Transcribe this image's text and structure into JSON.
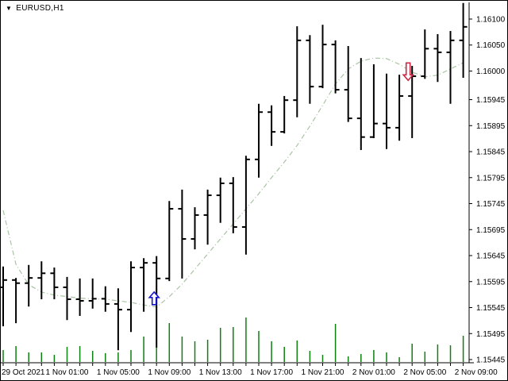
{
  "window": {
    "symbol_label": "EURUSD,H1"
  },
  "colors": {
    "background": "#ffffff",
    "bar": "#000000",
    "axis": "#000000",
    "ma_line": "#a9c4a4",
    "volume": "#0e800e",
    "buy_arrow": "#1515cc",
    "sell_arrow": "#cc2643",
    "label_text": "#000000"
  },
  "price_axis": {
    "labels": [
      "1.16100",
      "1.16050",
      "1.16000",
      "1.15945",
      "1.15895",
      "1.15845",
      "1.15795",
      "1.15745",
      "1.15695",
      "1.15645",
      "1.15595",
      "1.15545",
      "1.15495",
      "1.15445"
    ]
  },
  "time_axis": {
    "labels": [
      {
        "text": "29 Oct 2021",
        "bar": 1
      },
      {
        "text": "1 Nov 01:00",
        "bar": 5
      },
      {
        "text": "1 Nov 05:00",
        "bar": 9
      },
      {
        "text": "1 Nov 09:00",
        "bar": 13
      },
      {
        "text": "1 Nov 13:00",
        "bar": 17
      },
      {
        "text": "1 Nov 17:00",
        "bar": 21
      },
      {
        "text": "1 Nov 21:00",
        "bar": 25
      },
      {
        "text": "2 Nov 01:00",
        "bar": 29
      },
      {
        "text": "2 Nov 05:00",
        "bar": 33
      },
      {
        "text": "2 Nov 09:00",
        "bar": 37
      }
    ]
  },
  "chart_data": {
    "type": "bar",
    "subtype": "ohlc-bars-with-ma-and-volume",
    "symbol": "EURUSD",
    "timeframe": "H1",
    "ylim": [
      1.15445,
      1.16131
    ],
    "x": [
      "29 Oct 20:00",
      "29 Oct 21:00",
      "29 Oct 22:00",
      "29 Oct 23:00",
      "1 Nov 00:00",
      "1 Nov 01:00",
      "1 Nov 02:00",
      "1 Nov 03:00",
      "1 Nov 04:00",
      "1 Nov 05:00",
      "1 Nov 06:00",
      "1 Nov 07:00",
      "1 Nov 08:00",
      "1 Nov 09:00",
      "1 Nov 10:00",
      "1 Nov 11:00",
      "1 Nov 12:00",
      "1 Nov 13:00",
      "1 Nov 14:00",
      "1 Nov 15:00",
      "1 Nov 16:00",
      "1 Nov 17:00",
      "1 Nov 18:00",
      "1 Nov 19:00",
      "1 Nov 20:00",
      "1 Nov 21:00",
      "1 Nov 22:00",
      "1 Nov 23:00",
      "2 Nov 00:00",
      "2 Nov 01:00",
      "2 Nov 02:00",
      "2 Nov 03:00",
      "2 Nov 04:00",
      "2 Nov 05:00",
      "2 Nov 06:00",
      "2 Nov 07:00",
      "2 Nov 08:00"
    ],
    "series": [
      {
        "name": "EURUSD price",
        "type": "ohlc",
        "open": [
          1.15584,
          1.15598,
          1.15592,
          1.15602,
          1.15611,
          1.15584,
          1.15561,
          1.15558,
          1.15562,
          1.15552,
          1.15541,
          1.15622,
          1.15631,
          1.15601,
          1.15735,
          1.15677,
          1.15723,
          1.15761,
          1.15784,
          1.157,
          1.1583,
          1.15921,
          1.15883,
          1.15944,
          1.16059,
          1.1597,
          1.16051,
          1.15964,
          1.15909,
          1.15873,
          1.15899,
          1.15891,
          1.15952,
          1.1599,
          1.16043,
          1.16036,
          1.16059
        ],
        "high": [
          1.15624,
          1.15602,
          1.15627,
          1.15634,
          1.15622,
          1.15604,
          1.15601,
          1.15601,
          1.15586,
          1.15582,
          1.15634,
          1.1564,
          1.15644,
          1.1575,
          1.15772,
          1.15738,
          1.15772,
          1.15795,
          1.15796,
          1.15837,
          1.15937,
          1.15934,
          1.15952,
          1.16086,
          1.16069,
          1.16089,
          1.16059,
          1.16048,
          1.16025,
          1.16013,
          1.15995,
          1.15993,
          1.1601,
          1.1608,
          1.16071,
          1.16077,
          1.16131
        ],
        "low": [
          1.15509,
          1.15515,
          1.15547,
          1.15561,
          1.15561,
          1.15521,
          1.15529,
          1.15543,
          1.15537,
          1.15463,
          1.15498,
          1.15537,
          1.15468,
          1.15596,
          1.15601,
          1.15657,
          1.15666,
          1.15708,
          1.15688,
          1.15647,
          1.15795,
          1.15856,
          1.1588,
          1.15911,
          1.15937,
          1.15967,
          1.15957,
          1.15902,
          1.15848,
          1.15871,
          1.1585,
          1.15866,
          1.15871,
          1.15985,
          1.15979,
          1.15937,
          1.15987
        ],
        "close": [
          1.15598,
          1.15592,
          1.15602,
          1.15611,
          1.15584,
          1.15561,
          1.15558,
          1.15562,
          1.15552,
          1.15541,
          1.15622,
          1.15631,
          1.15601,
          1.15735,
          1.15677,
          1.15723,
          1.15761,
          1.15784,
          1.157,
          1.1583,
          1.15921,
          1.15883,
          1.15944,
          1.16059,
          1.1597,
          1.16051,
          1.15964,
          1.15909,
          1.15873,
          1.15899,
          1.15891,
          1.15952,
          1.1599,
          1.16043,
          1.16036,
          1.16059,
          1.16085
        ]
      },
      {
        "name": "moving-average",
        "type": "line",
        "style": "dash-dot",
        "values": [
          1.15732,
          1.15628,
          1.15589,
          1.15575,
          1.15569,
          1.15566,
          1.15563,
          1.15562,
          1.15561,
          1.15558,
          1.15555,
          1.1555,
          1.15546,
          1.15566,
          1.1559,
          1.15619,
          1.15648,
          1.15677,
          1.15706,
          1.15735,
          1.15764,
          1.15795,
          1.15825,
          1.15857,
          1.15894,
          1.15934,
          1.15975,
          1.16004,
          1.16019,
          1.16025,
          1.16024,
          1.16013,
          1.15998,
          1.15989,
          1.15992,
          1.16004,
          1.16016
        ]
      },
      {
        "name": "volume",
        "type": "bar",
        "values": [
          15,
          20,
          12,
          12,
          9,
          19,
          20,
          14,
          11,
          12,
          15,
          32,
          20,
          49,
          32,
          26,
          28,
          43,
          44,
          56,
          39,
          26,
          19,
          27,
          14,
          9,
          48,
          7,
          10,
          15,
          12,
          6,
          23,
          13,
          22,
          21,
          33
        ]
      }
    ],
    "markers": [
      {
        "type": "buy-arrow",
        "bar": 12,
        "price": 1.15575,
        "dx": -3
      },
      {
        "type": "sell-arrow",
        "bar": 32,
        "price": 1.15982,
        "dx": -5
      }
    ]
  }
}
